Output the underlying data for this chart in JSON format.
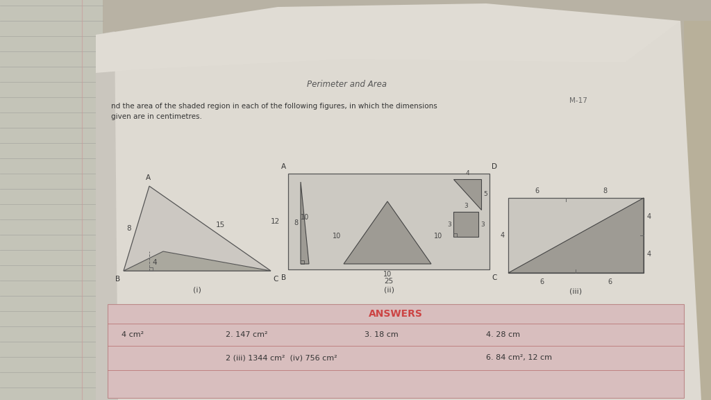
{
  "title": "Perimeter and Area",
  "page_ref": "M-17",
  "bg_outer": "#b0aa9a",
  "bg_notebook": "#c8c8bc",
  "bg_page": "#dedad4",
  "bg_page_top": "#e8e4dc",
  "answers_bg": "#dcc8c4",
  "answers_title": "ANSWERS",
  "line_color": "#aaaaaa",
  "text_dark": "#333333",
  "text_mid": "#555555",
  "shape_fill": "#b8b4ae",
  "shape_outline": "#666666",
  "outer_fill": "#ccc8c2",
  "answers": [
    "4 cm²",
    "2. 147 cm²",
    "3. 18 cm",
    "4. 28 cm",
    "6. 84 cm², 12 cm",
    "2 (iii) 1344 cm²  (iv) 756 cm²"
  ]
}
